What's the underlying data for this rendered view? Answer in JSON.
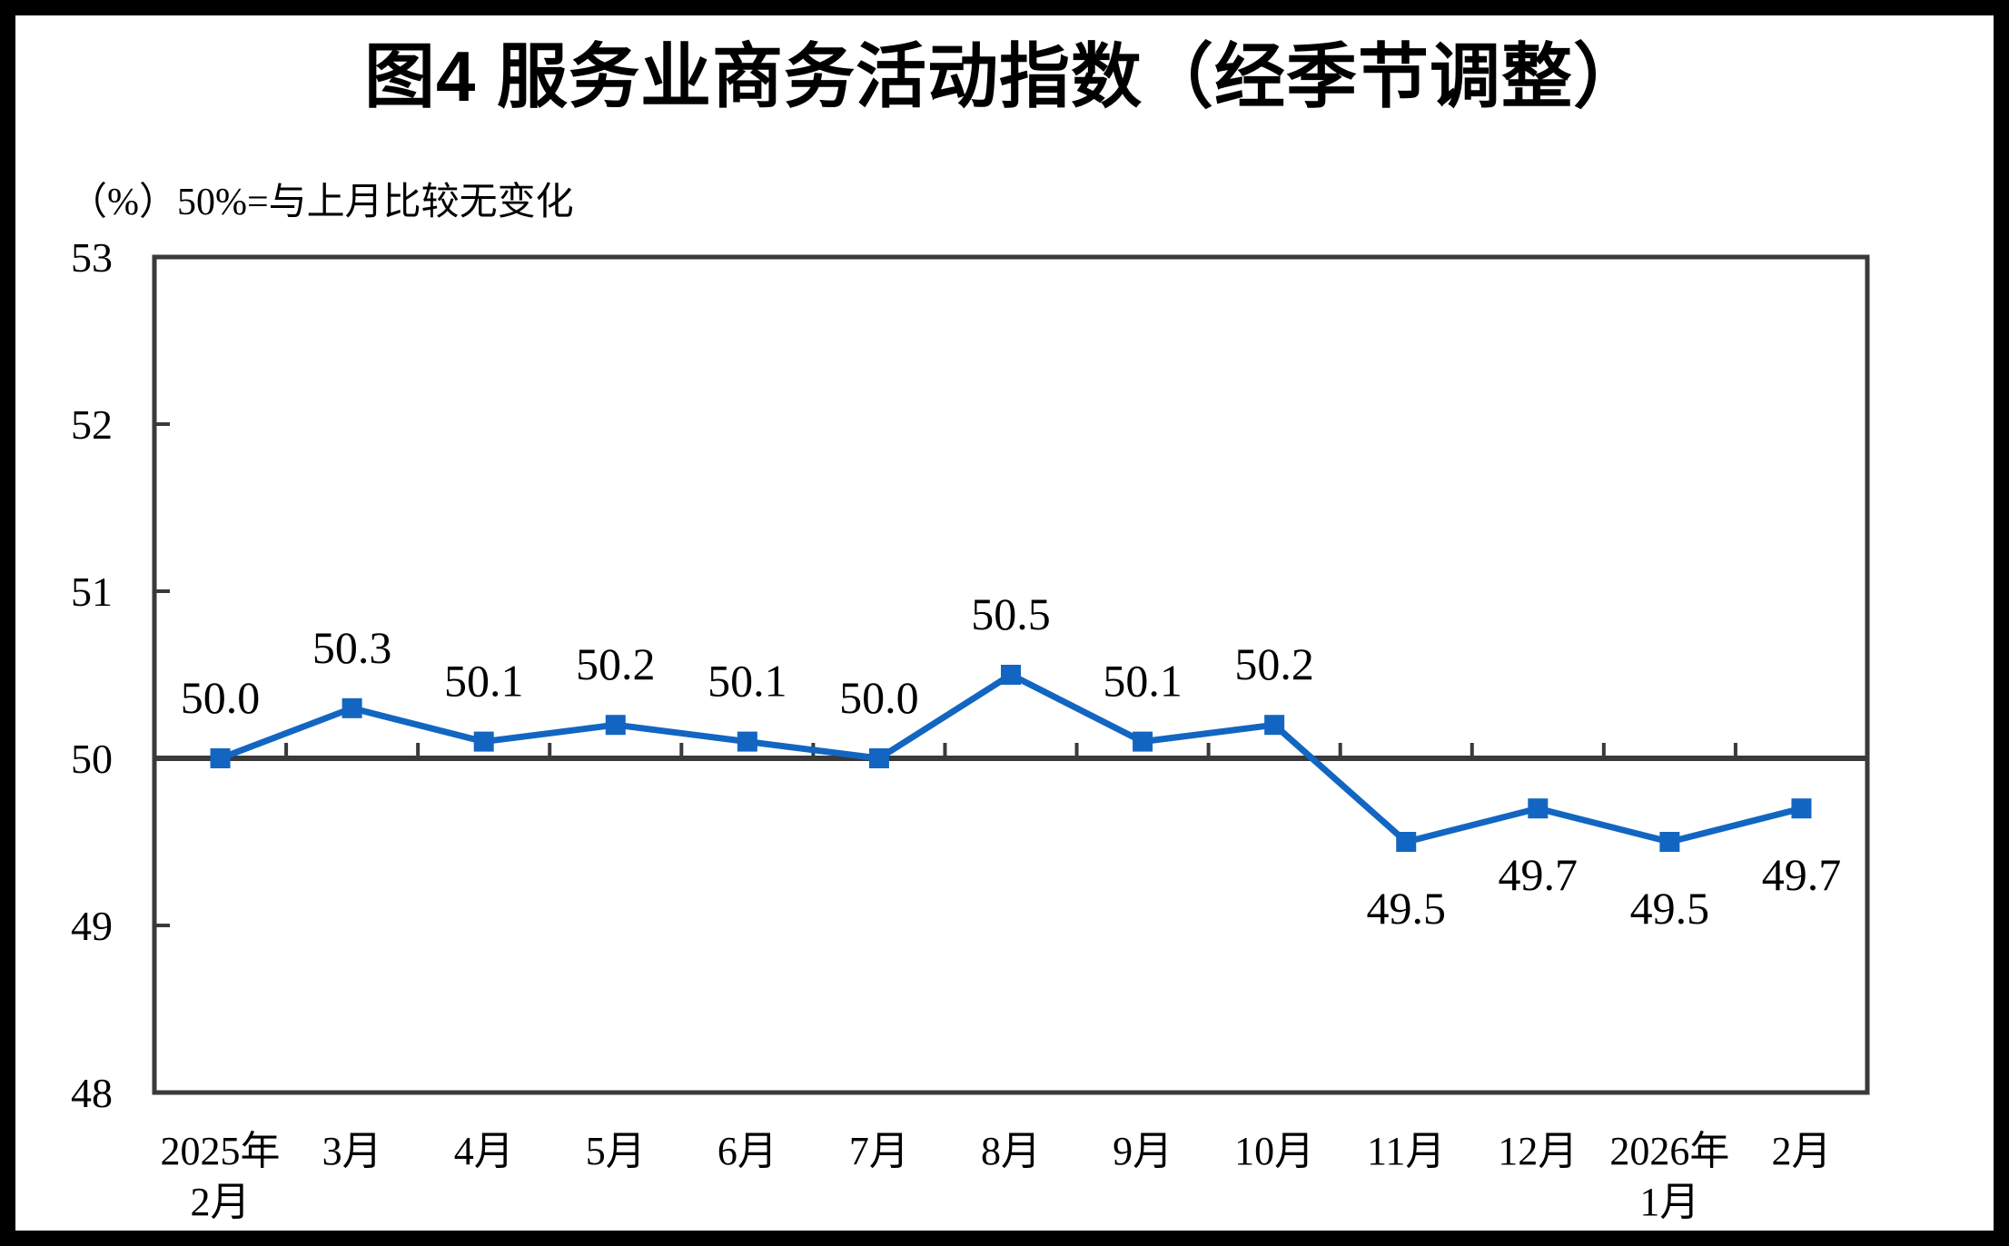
{
  "chart": {
    "title": "图4  服务业商务活动指数（经季节调整）",
    "unit_note": "（%）50%=与上月比较无变化"
  },
  "chart_data": {
    "type": "line",
    "title": "图4  服务业商务活动指数（经季节调整）",
    "unit_note": "（%）50%=与上月比较无变化",
    "series_name": "服务业商务活动指数",
    "categories": [
      [
        "2025年",
        "2月"
      ],
      [
        "3月"
      ],
      [
        "4月"
      ],
      [
        "5月"
      ],
      [
        "6月"
      ],
      [
        "7月"
      ],
      [
        "8月"
      ],
      [
        "9月"
      ],
      [
        "10月"
      ],
      [
        "11月"
      ],
      [
        "12月"
      ],
      [
        "2026年",
        "1月"
      ],
      [
        "2月"
      ]
    ],
    "values": [
      50.0,
      50.3,
      50.1,
      50.2,
      50.1,
      50.0,
      50.5,
      50.1,
      50.2,
      49.5,
      49.7,
      49.5,
      49.7
    ],
    "data_labels": [
      "50.0",
      "50.3",
      "50.1",
      "50.2",
      "50.1",
      "50.0",
      "50.5",
      "50.1",
      "50.2",
      "49.5",
      "49.7",
      "49.5",
      "49.7"
    ],
    "ylim": [
      48,
      53
    ],
    "y_ticks": [
      48,
      49,
      50,
      51,
      52,
      53
    ],
    "reference_line": 50,
    "grid": false,
    "legend": "none",
    "marker": "square",
    "colors": {
      "series": "#1266C1",
      "axis": "#3A3A3A",
      "text": "#000000",
      "background": "#FFFFFF",
      "frame": "#000000"
    }
  }
}
